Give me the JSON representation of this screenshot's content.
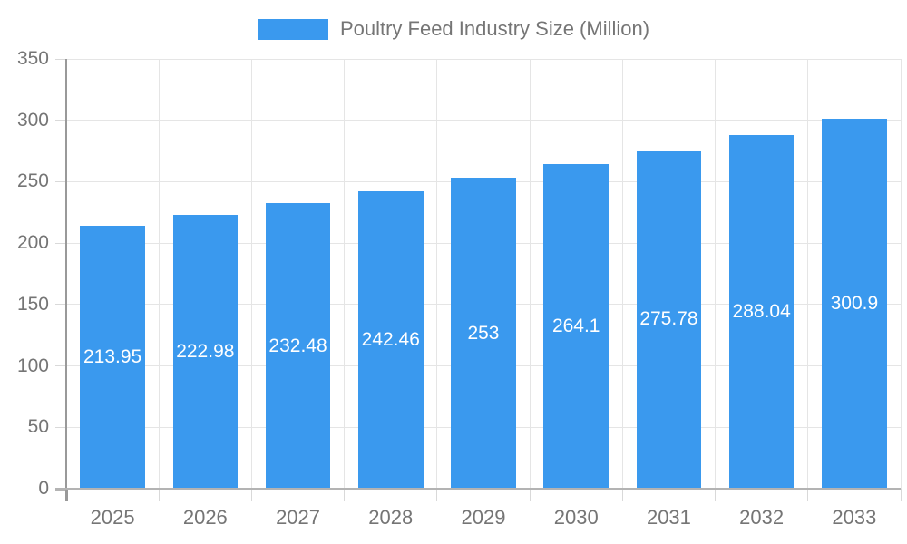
{
  "chart_data": {
    "type": "bar",
    "title": "Poultry Feed Industry Size (Million)",
    "categories": [
      "2025",
      "2026",
      "2027",
      "2028",
      "2029",
      "2030",
      "2031",
      "2032",
      "2033"
    ],
    "values": [
      213.95,
      222.98,
      232.48,
      242.46,
      253,
      264.1,
      275.78,
      288.04,
      300.9
    ],
    "value_labels": [
      "213.95",
      "222.98",
      "232.48",
      "242.46",
      "253",
      "264.1",
      "275.78",
      "288.04",
      "300.9"
    ],
    "series_name": "Poultry Feed Industry Size (Million)",
    "xlabel": "",
    "ylabel": "",
    "ylim": [
      0,
      350
    ],
    "y_ticks": [
      0,
      50,
      100,
      150,
      200,
      250,
      300,
      350
    ],
    "grid": true,
    "legend_position": "top",
    "style": {
      "bar_color": "#3a99ee",
      "value_label_color": "#ffffff",
      "axis_text_color": "#757575",
      "legend_text_color": "#757575",
      "grid_color": "#e5e5e5",
      "tick_color": "#d9d9d9",
      "y_axis_line_color": "#999999",
      "x_baseline_color": "#b3b3b3",
      "background_color": "#ffffff"
    }
  }
}
